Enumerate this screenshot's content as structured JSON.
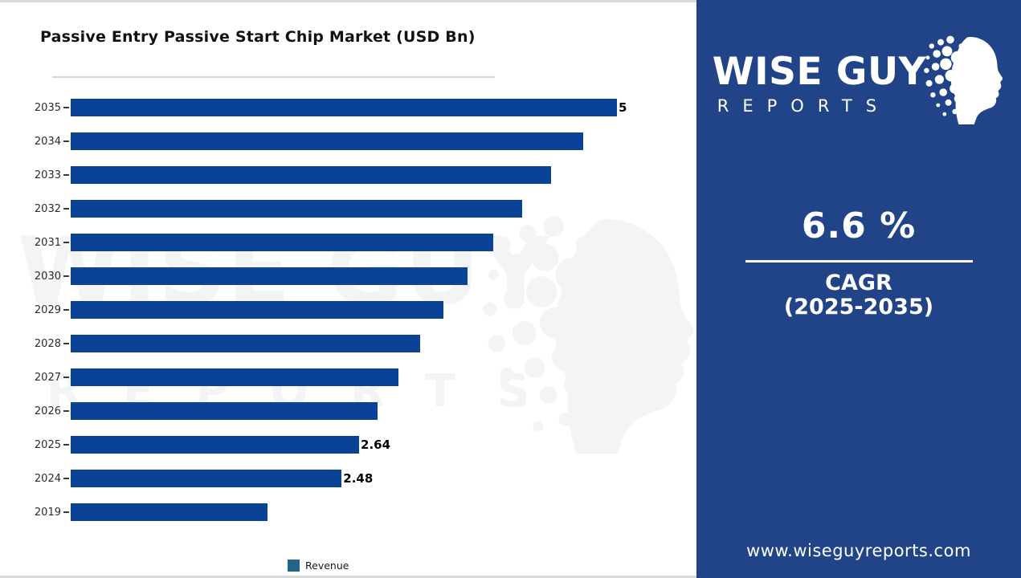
{
  "chart_data": {
    "type": "bar",
    "orientation": "horizontal",
    "title": "Passive Entry Passive Start Chip Market (USD Bn)",
    "categories": [
      "2035",
      "2034",
      "2033",
      "2032",
      "2031",
      "2030",
      "2029",
      "2028",
      "2027",
      "2026",
      "2025",
      "2024",
      "2019"
    ],
    "values": [
      5.0,
      4.69,
      4.4,
      4.13,
      3.87,
      3.63,
      3.41,
      3.2,
      3.0,
      2.81,
      2.64,
      2.48,
      1.8
    ],
    "bar_labels": [
      "5",
      "",
      "",
      "",
      "",
      "",
      "",
      "",
      "",
      "",
      "2.64",
      "2.48",
      ""
    ],
    "xlim": [
      0,
      5.45
    ],
    "grid": false,
    "bar_color": "#0a4296",
    "legend_position": "bottom-center",
    "legend": [
      {
        "name": "Revenue",
        "color": "#206687"
      }
    ]
  },
  "watermark": {
    "line1": "WISE GUY",
    "line2": "REPORTS"
  },
  "sidebar": {
    "bg_color": "#214489",
    "brand": {
      "line1": "WISE GUY",
      "line2": "REPORTS"
    },
    "cagr": {
      "value": "6.6 %",
      "label1": "CAGR",
      "label2": "(2025-2035)"
    },
    "website": "www.wiseguyreports.com"
  }
}
